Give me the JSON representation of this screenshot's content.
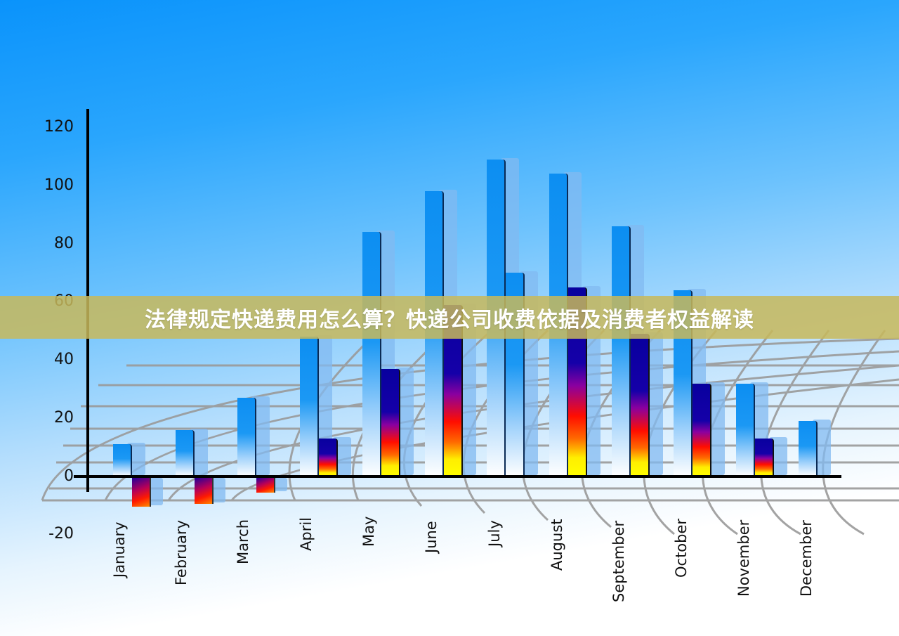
{
  "banner": {
    "title": "法律规定快递费用怎么算？快递公司收费依据及消费者权益解读"
  },
  "colors": {
    "background_top": "#0a93fb",
    "series_blue": "#0c8ef2",
    "series_heat_top": "#08009e",
    "series_heat_mid": "#ff0d00",
    "series_heat_bottom": "#ffff00",
    "shadow": "#82b9f0",
    "banner": "#c8b95a",
    "grid": "#9a9a9a"
  },
  "chart_data": {
    "type": "bar",
    "title": "",
    "xlabel": "",
    "ylabel": "",
    "ylim": [
      -20,
      120
    ],
    "yticks": [
      "120",
      "100",
      "80",
      "60",
      "40",
      "20",
      "0",
      "-20"
    ],
    "categories": [
      "January",
      "February",
      "March",
      "April",
      "May",
      "June",
      "July",
      "August",
      "September",
      "October",
      "November",
      "December"
    ],
    "series": [
      {
        "name": "Series 1 (blue)",
        "values": [
          11,
          16,
          27,
          48,
          84,
          98,
          109,
          104,
          86,
          64,
          32,
          19
        ]
      },
      {
        "name": "Series 2 (gradient)",
        "values": [
          -10,
          -9,
          -5,
          13,
          37,
          59,
          70,
          65,
          49,
          32,
          13,
          null
        ]
      }
    ],
    "grid": true,
    "legend": "none",
    "style": "3D perspective grid with shadowed bars"
  }
}
